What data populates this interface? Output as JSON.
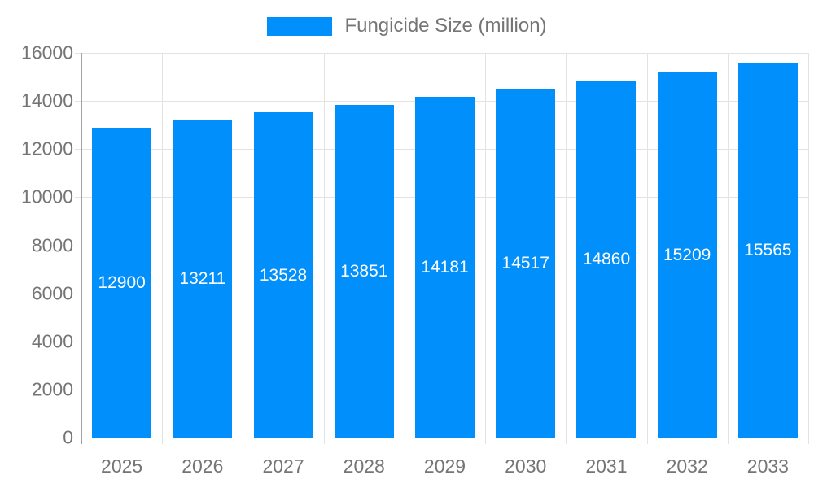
{
  "legend": {
    "label": "Fungicide Size (million)"
  },
  "chart_data": {
    "type": "bar",
    "title": "Fungicide Size (million)",
    "series_name": "Fungicide Size (million)",
    "categories": [
      "2025",
      "2026",
      "2027",
      "2028",
      "2029",
      "2030",
      "2031",
      "2032",
      "2033"
    ],
    "values": [
      12900,
      13211,
      13528,
      13851,
      14181,
      14517,
      14860,
      15209,
      15565
    ],
    "value_labels": [
      "12900",
      "13211",
      "13528",
      "13851",
      "14181",
      "14517",
      "14860",
      "15209",
      "15565"
    ],
    "xlabel": "",
    "ylabel": "",
    "ylim": [
      0,
      16000
    ],
    "ytick_step": 2000,
    "ytick_labels": [
      "0",
      "2000",
      "4000",
      "6000",
      "8000",
      "10000",
      "12000",
      "14000",
      "16000"
    ],
    "grid": true,
    "legend_position": "top",
    "colors": {
      "bar": "#008FFB",
      "value_label": "#ffffff",
      "axis_label": "#757575",
      "gridline": "#e3e3e3",
      "axis_line": "#a3a3a3"
    }
  }
}
